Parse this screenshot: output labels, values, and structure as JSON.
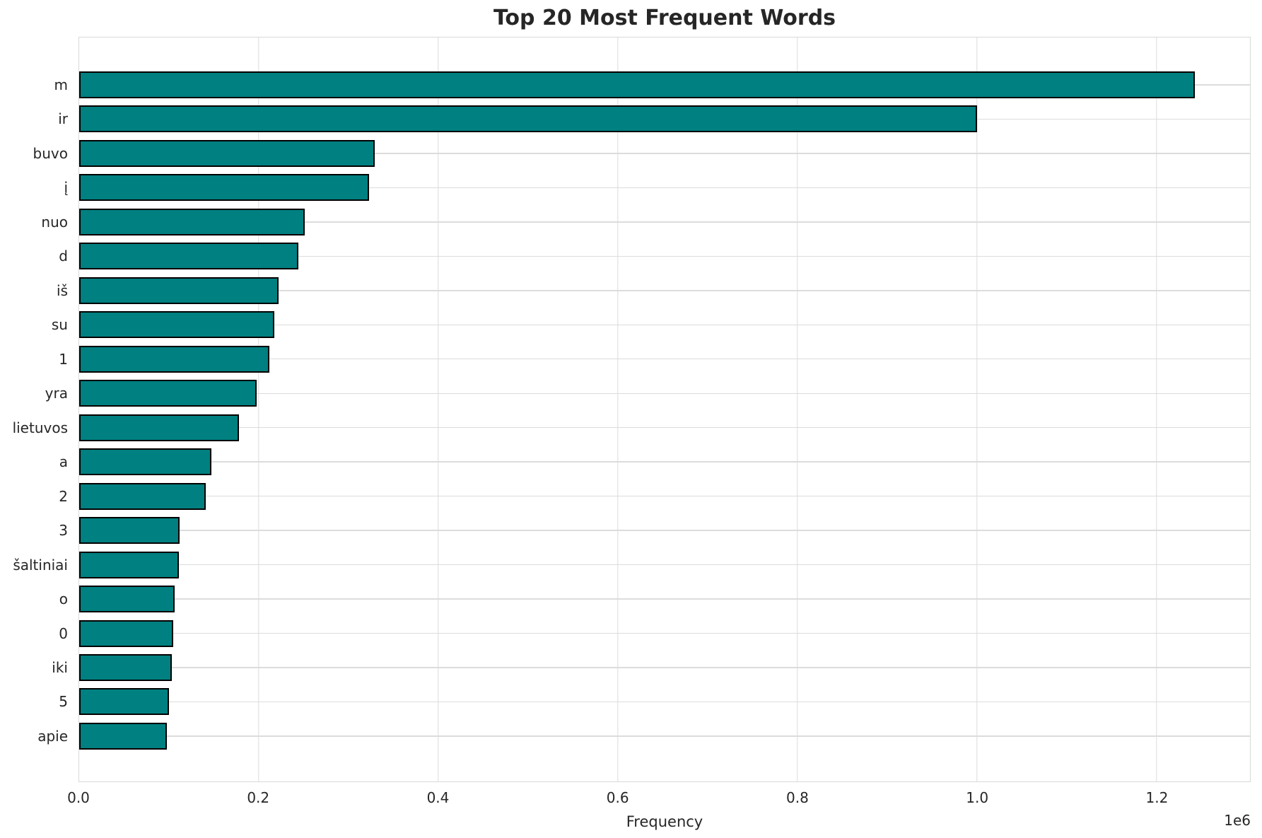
{
  "title": "Top 20 Most Frequent Words",
  "colors": {
    "bar_fill": "#008080",
    "bar_edge": "#000000",
    "grid": "#dcdcdc",
    "spine": "#d9d9d9",
    "text": "#262626",
    "background": "#ffffff"
  },
  "chart_data": {
    "type": "bar",
    "orientation": "horizontal",
    "title": "Top 20 Most Frequent Words",
    "xlabel": "Frequency",
    "ylabel": "",
    "offset_text": "1e6",
    "grid": true,
    "legend": null,
    "categories": [
      "m",
      "ir",
      "buvo",
      "į",
      "nuo",
      "d",
      "iš",
      "su",
      "1",
      "yra",
      "lietuvos",
      "a",
      "2",
      "3",
      "šaltiniai",
      "o",
      "0",
      "iki",
      "5",
      "apie"
    ],
    "values": [
      1243000,
      1000000,
      329000,
      323000,
      251000,
      244000,
      222000,
      217000,
      212000,
      198000,
      178000,
      147000,
      141000,
      112000,
      111000,
      106000,
      105000,
      103000,
      100000,
      98000
    ],
    "xlim": [
      0,
      1304300
    ],
    "xticks": [
      0,
      200000,
      400000,
      600000,
      800000,
      1000000,
      1200000
    ],
    "xtick_labels": [
      "0.0",
      "0.2",
      "0.4",
      "0.6",
      "0.8",
      "1.0",
      "1.2"
    ]
  }
}
